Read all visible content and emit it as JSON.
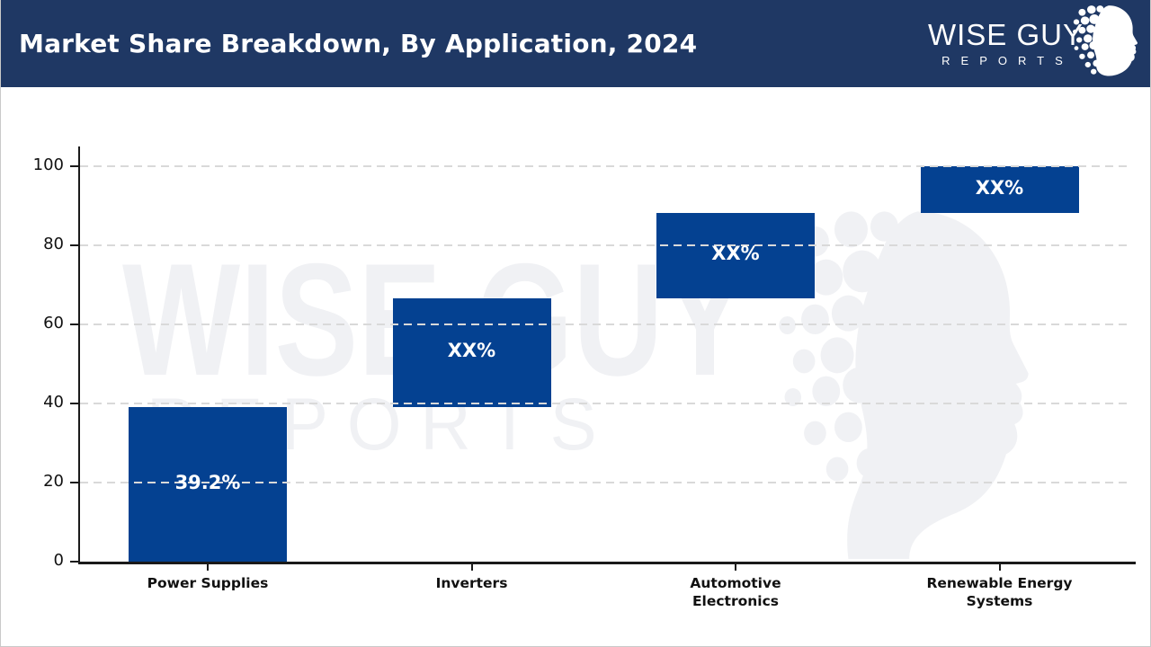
{
  "header": {
    "title": "Market Share Breakdown, By Application, 2024",
    "background": "#1f3864",
    "logo": {
      "wordmark": "WISE GUY",
      "subtitle": "REPORTS"
    }
  },
  "watermark": {
    "wordmark": "WISE GUY",
    "subtitle": "REPORTS"
  },
  "chart_data": {
    "type": "bar",
    "subtype": "waterfall",
    "title": "Market Share Breakdown, By Application, 2024",
    "categories": [
      "Power Supplies",
      "Inverters",
      "Automotive Electronics",
      "Renewable Energy Systems"
    ],
    "segments": [
      {
        "category": "Power Supplies",
        "start": 0,
        "end": 39.2,
        "label": "39.2%"
      },
      {
        "category": "Inverters",
        "start": 39.2,
        "end": 66.6,
        "label": "XX%"
      },
      {
        "category": "Automotive Electronics",
        "start": 66.6,
        "end": 88.2,
        "label": "XX%"
      },
      {
        "category": "Renewable Energy Systems",
        "start": 88.2,
        "end": 100,
        "label": "XX%"
      }
    ],
    "ylim": [
      0,
      100
    ],
    "yticks": [
      0,
      20,
      40,
      60,
      80,
      100
    ],
    "grid": "horizontal-dashed",
    "legend": "none",
    "bar_color": "#044191",
    "bar_label_color": "#ffffff",
    "axis_color": "#1a1a1a",
    "grid_color": "#d9d9d9",
    "watermark_color": "#f0f1f4"
  }
}
